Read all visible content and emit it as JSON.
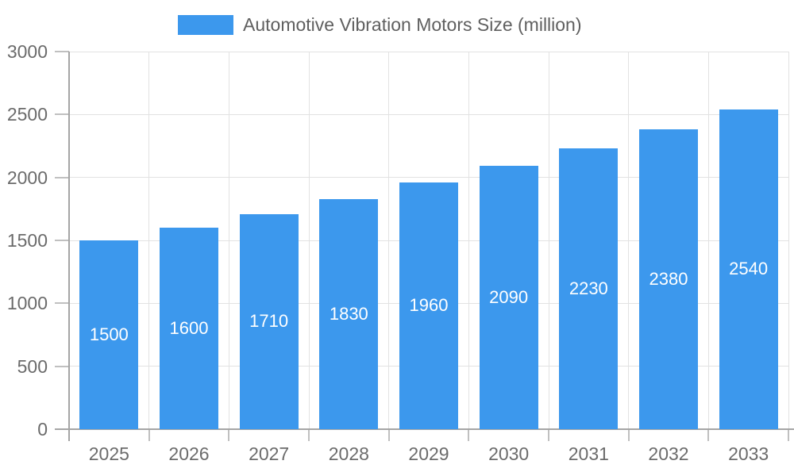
{
  "legend": {
    "label": "Automotive Vibration Motors Size (million)",
    "swatch_color": "#3C98ED"
  },
  "chart_data": {
    "type": "bar",
    "title": "Automotive Vibration Motors Size (million)",
    "series_name": "Automotive Vibration Motors Size (million)",
    "categories": [
      "2025",
      "2026",
      "2027",
      "2028",
      "2029",
      "2030",
      "2031",
      "2032",
      "2033"
    ],
    "values": [
      1500,
      1600,
      1710,
      1830,
      1960,
      2090,
      2230,
      2380,
      2540
    ],
    "xlabel": "",
    "ylabel": "",
    "ylim": [
      0,
      3000
    ],
    "yticks": [
      0,
      500,
      1000,
      1500,
      2000,
      2500,
      3000
    ],
    "grid": true,
    "legend_position": "top",
    "bar_color": "#3C98ED",
    "bar_label_color": "#ffffff",
    "axis_text_color": "#6b6b6b",
    "grid_color": "#e2e2e2",
    "axis_line_color": "#a5a5a5"
  }
}
